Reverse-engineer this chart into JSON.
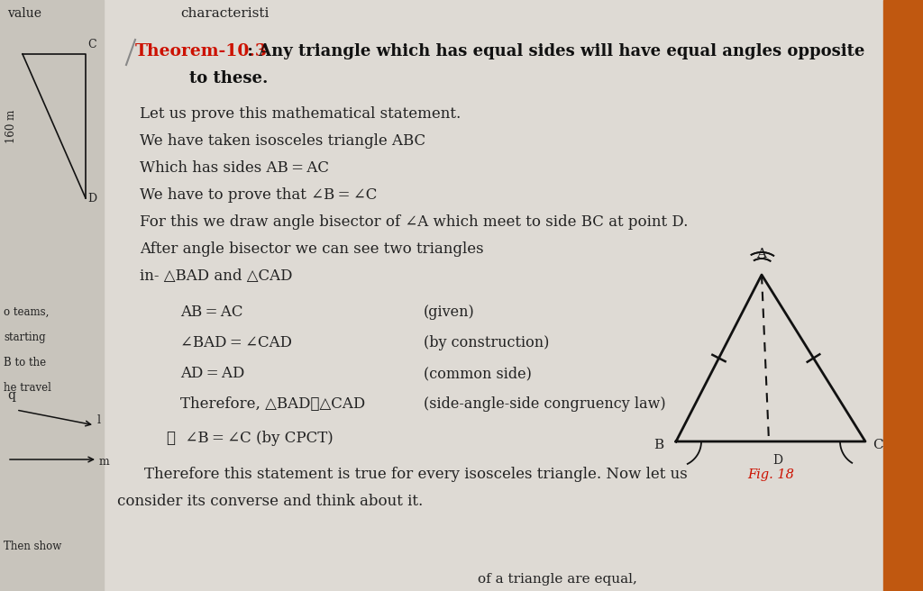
{
  "bg_color": "#ccc8c0",
  "page_bg": "#dedad4",
  "sidebar_bg": "#c8c4bc",
  "orange_bar": "#c05810",
  "title_red": "#cc1100",
  "black": "#111111",
  "dark": "#222222",
  "fig_red": "#cc1100",
  "title1": "Theorem-10.3",
  "title2": " : Any triangle which has equal sides will have equal angles opposite",
  "title3": "to these.",
  "lines": [
    "Let us prove this mathematical statement.",
    "We have taken isosceles triangle ABC",
    "Which has sides AB = AC",
    "We have to prove that ∠B = ∠C",
    "For this we draw angle bisector of ∠A which meet to side BC at point D.",
    "After angle bisector we can see two triangles",
    "in- △BAD and △CAD"
  ],
  "proof": [
    [
      "AB = AC",
      "(given)"
    ],
    [
      "∠BAD = ∠CAD",
      "(by construction)"
    ],
    [
      "AD = AD",
      "(common side)"
    ],
    [
      "Therefore, △BAD≅△CAD",
      "(side-angle-side congruency law)"
    ]
  ],
  "therefore": "∴  ∠B = ∠C (by CPCT)",
  "final1": "Therefore this statement is true for every isosceles triangle. Now let us",
  "final2": "consider its converse and think about it.",
  "bottom_partial": "of a triangle are equal,",
  "sidebar_texts": [
    "value",
    "C",
    "D",
    "o teams,",
    "starting",
    "B to the",
    "he travel",
    "q",
    "Then show"
  ],
  "top_partial": "characteristi"
}
